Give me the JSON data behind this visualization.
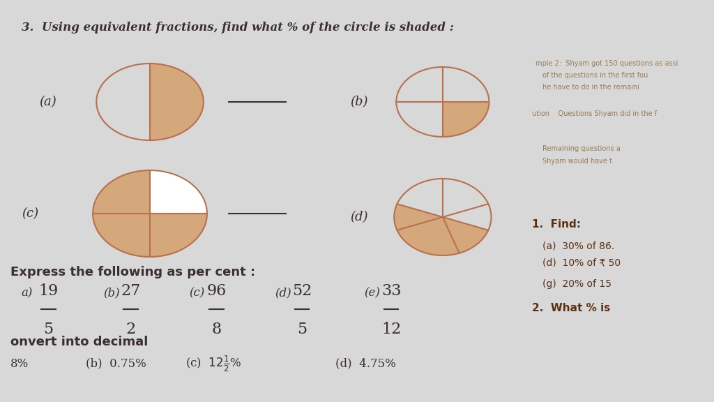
{
  "title": "3.  Using equivalent fractions, find what % of the circle is shaded :",
  "bg_color": "#d8d8d8",
  "paper_color": "#f0eeea",
  "shaded_color": "#d4a87a",
  "line_color": "#b87050",
  "text_color": "#3a3030",
  "label_a": "(a)",
  "label_b": "(b)",
  "label_c": "(c)",
  "label_d": "(d)",
  "expr_title": "Express the following as per cent :",
  "fractions": [
    {
      "label": "a)",
      "num": "19",
      "den": "5"
    },
    {
      "label": "(b)",
      "num": "27",
      "den": "2"
    },
    {
      "label": "(c)",
      "num": "96",
      "den": "8"
    },
    {
      "label": "(d)",
      "num": "52",
      "den": "5"
    },
    {
      "label": "(e)",
      "num": "33",
      "den": "12"
    }
  ],
  "convert_title": "onvert into decimal",
  "convert_items": [
    {
      "label": "8%"
    },
    {
      "label": "(b)  0.75%"
    },
    {
      "label": "(c)  12\\frac{1}{2}%"
    },
    {
      "label": "(d)  4.75%"
    }
  ]
}
